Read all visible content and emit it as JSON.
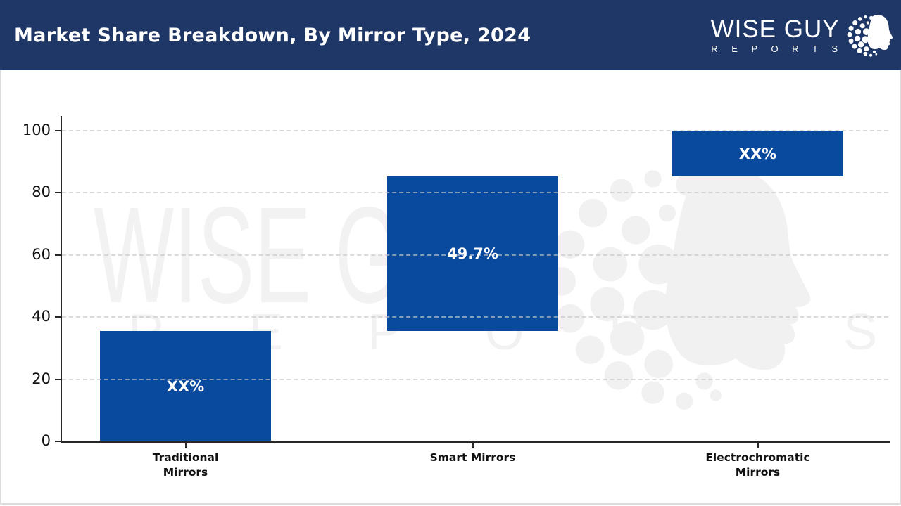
{
  "header": {
    "title": "Market Share Breakdown, By Mirror Type, 2024",
    "logo": {
      "wordmark": "WISE GUY",
      "reports": "R E P O R T S"
    }
  },
  "watermark": {
    "wordmark": "WISE GUY",
    "reports": "R E P O R T S"
  },
  "colors": {
    "header_bg": "#1f3766",
    "bar_fill": "#0a4a9e",
    "bar_label_text": "#ffffff",
    "grid_line": "#d8d8d8",
    "axis_line": "#262626",
    "tick_text": "#111111",
    "watermark": "#f2f2f2",
    "frame_border": "#dcdcdc"
  },
  "chart_data": {
    "type": "bar",
    "subtype": "waterfall-stacked-percentage",
    "title": "Market Share Breakdown, By Mirror Type, 2024",
    "xlabel": "",
    "ylabel": "",
    "ylim": [
      0,
      100
    ],
    "yticks": [
      0,
      20,
      40,
      60,
      80,
      100
    ],
    "grid": "horizontal-dashed-over-bars",
    "legend": "none",
    "categories": [
      "Traditional\nMirrors",
      "Smart Mirrors",
      "Electrochromatic\nMirrors"
    ],
    "bars": [
      {
        "category": "Traditional\nMirrors",
        "start": 0,
        "end": 35.5,
        "value_label": "XX%"
      },
      {
        "category": "Smart Mirrors",
        "start": 35.5,
        "end": 85.2,
        "value_label": "49.7%"
      },
      {
        "category": "Electrochromatic\nMirrors",
        "start": 85.2,
        "end": 100,
        "value_label": "XX%"
      }
    ]
  }
}
